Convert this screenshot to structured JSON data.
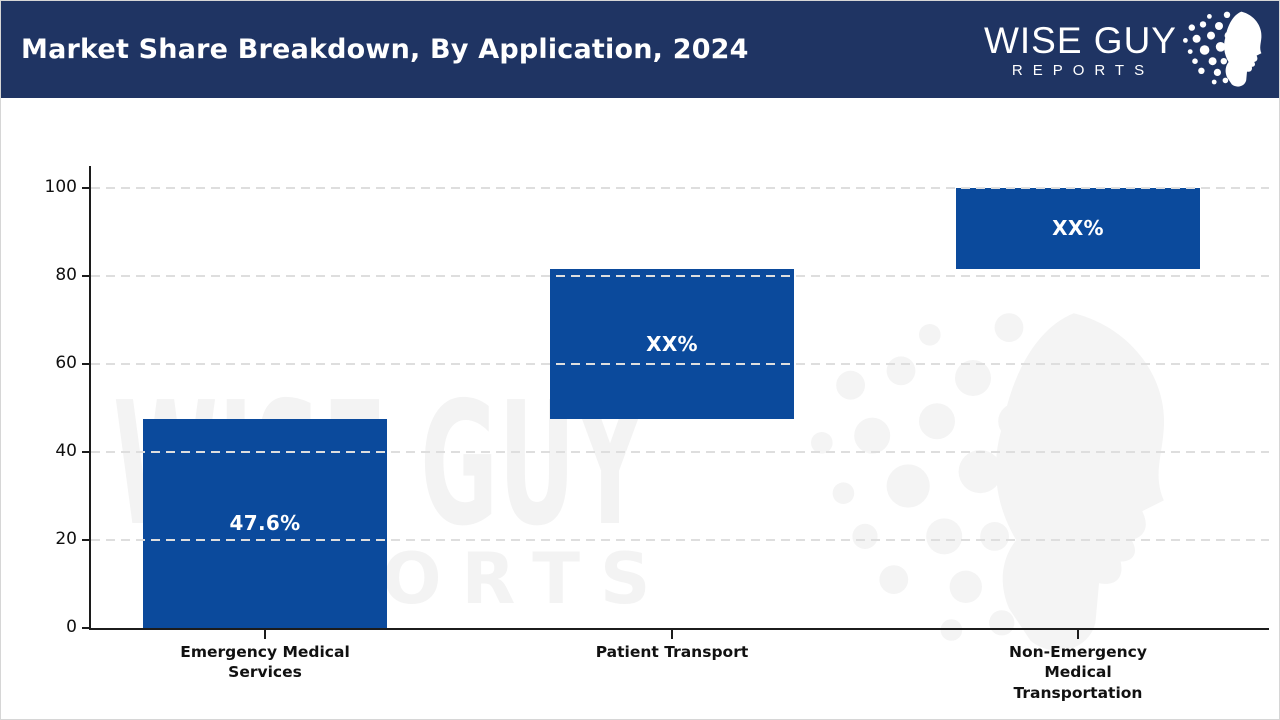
{
  "header": {
    "title": "Market Share Breakdown, By Application, 2024",
    "logo": {
      "line1": "WISE GUY",
      "line2": "REPORTS"
    }
  },
  "watermark": {
    "line1": "WISE GUY",
    "line2": "REPORTS"
  },
  "chart_data": {
    "type": "bar",
    "subtype": "waterfall",
    "title": "Market Share Breakdown, By Application, 2024",
    "categories": [
      "Emergency Medical\nServices",
      "Patient Transport",
      "Non-Emergency\nMedical\nTransportation"
    ],
    "segments": [
      {
        "category": "Emergency Medical Services",
        "start": 0,
        "end": 47.6,
        "label": "47.6%"
      },
      {
        "category": "Patient Transport",
        "start": 47.6,
        "end": 81.6,
        "label": "XX%"
      },
      {
        "category": "Non-Emergency Medical Transportation",
        "start": 81.6,
        "end": 100,
        "label": "XX%"
      }
    ],
    "ylim": [
      0,
      100
    ],
    "yticks": [
      0,
      20,
      40,
      60,
      80,
      100
    ],
    "grid": "horizontal-dashed",
    "legend": "none",
    "colors": {
      "bar": "#0b4a9c",
      "bar_label": "#ffffff",
      "header_bg": "#1f3463",
      "grid": "#dedede",
      "axis": "#1c1c1c",
      "watermark": "#f3f3f3"
    }
  }
}
